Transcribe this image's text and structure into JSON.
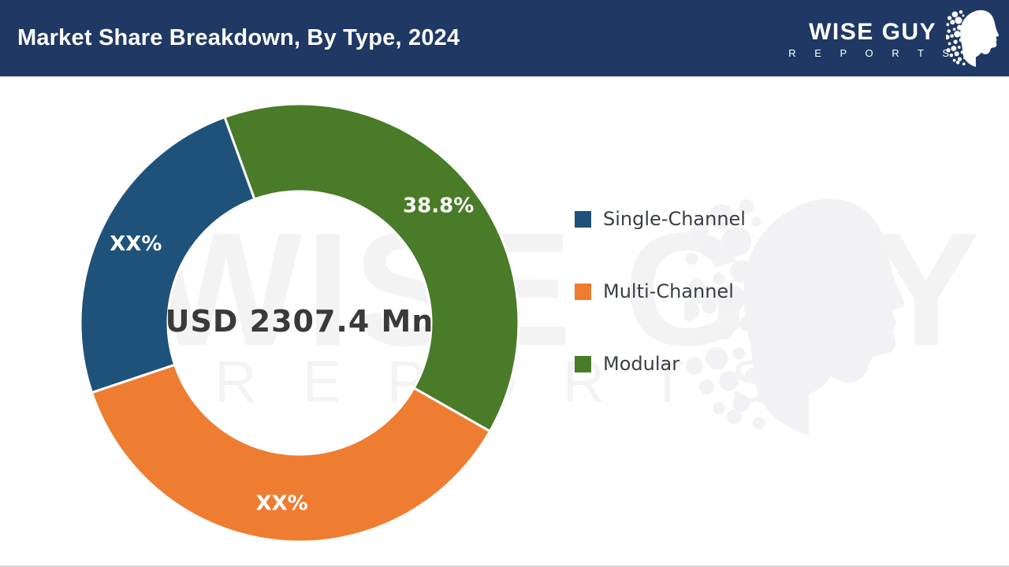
{
  "header": {
    "title": "Market Share Breakdown, By Type, 2024",
    "bg_color": "#1f3864",
    "logo": {
      "line1": "WISE GUY",
      "line2": "R E P O R T S"
    }
  },
  "watermark": {
    "line1": "WISE GUY",
    "line2": "REPORTS"
  },
  "chart_data": {
    "type": "pie",
    "subtype": "donut",
    "title": "Market Share Breakdown, By Type, 2024",
    "center_label": "USD 2307.4 Mn",
    "start_angle_deg": -20,
    "legend_position": "right",
    "segments": [
      {
        "label": "Modular",
        "value_pct": 38.8,
        "display_label": "38.8%",
        "color": "#4a7b28"
      },
      {
        "label": "Multi-Channel",
        "value_pct": 36.6,
        "display_label": "XX%",
        "color": "#ee7d31"
      },
      {
        "label": "Single-Channel",
        "value_pct": 24.6,
        "display_label": "XX%",
        "color": "#1f527a"
      }
    ],
    "legend": [
      {
        "label": "Single-Channel",
        "color": "#1f527a"
      },
      {
        "label": "Multi-Channel",
        "color": "#ee7d31"
      },
      {
        "label": "Modular",
        "color": "#4a7b28"
      }
    ]
  }
}
